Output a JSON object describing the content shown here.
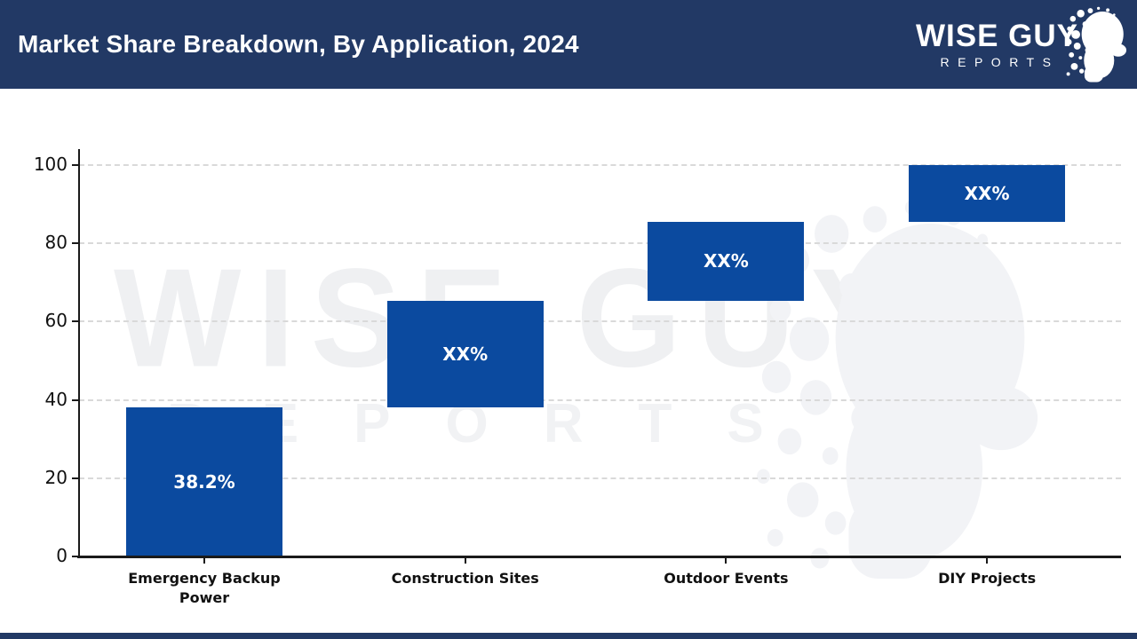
{
  "header": {
    "title": "Market Share Breakdown, By Application, 2024",
    "logo": {
      "wordmark": "WISE GUY",
      "subtext": "REPORTS"
    }
  },
  "watermark": {
    "wordmark": "WISE GUY",
    "subtext": "REPORTS"
  },
  "chart_data": {
    "type": "bar",
    "variant": "waterfall",
    "title": "Market Share Breakdown, By Application, 2024",
    "categories": [
      "Emergency Backup Power",
      "Construction Sites",
      "Outdoor Events",
      "DIY Projects"
    ],
    "category_label_lines": [
      [
        "Emergency Backup",
        "Power"
      ],
      [
        "Construction Sites"
      ],
      [
        "Outdoor Events"
      ],
      [
        "DIY Projects"
      ]
    ],
    "segments": [
      {
        "category": "Emergency Backup Power",
        "start": 0,
        "end": 38.2,
        "label": "38.2%"
      },
      {
        "category": "Construction Sites",
        "start": 38.2,
        "end": 65.2,
        "label": "XX%"
      },
      {
        "category": "Outdoor Events",
        "start": 65.3,
        "end": 85.5,
        "label": "XX%"
      },
      {
        "category": "DIY Projects",
        "start": 85.6,
        "end": 100,
        "label": "XX%"
      }
    ],
    "ylim": [
      0,
      100
    ],
    "yticks": [
      0,
      20,
      40,
      60,
      80,
      100
    ],
    "xlabel": "",
    "ylabel": "",
    "grid": "horizontal-dashed",
    "legend": "none",
    "colors": {
      "bar": "#0b4a9f",
      "bar_label": "#ffffff",
      "axis": "#1a1a1a",
      "gridline": "#d9d9d9",
      "header_band": "#223965",
      "watermark": "#eff0f2"
    }
  }
}
